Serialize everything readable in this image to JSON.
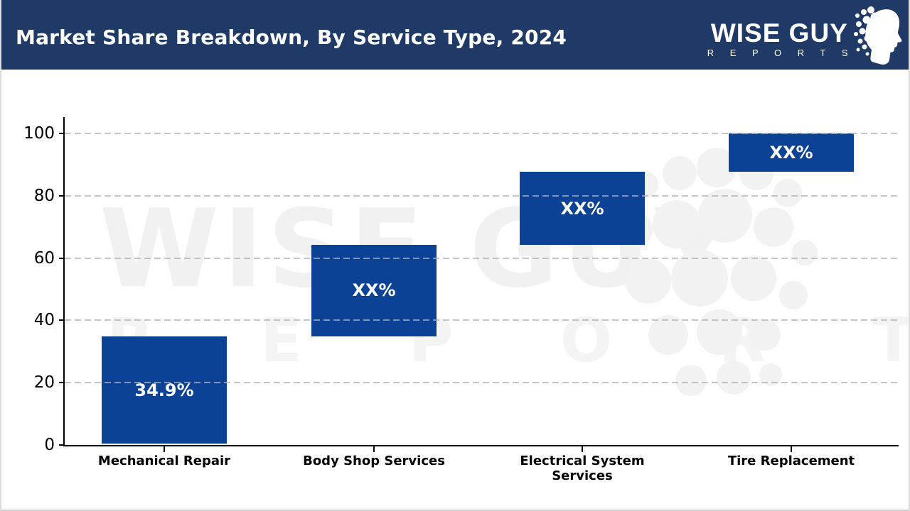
{
  "header": {
    "title": "Market Share Breakdown, By Service Type, 2024",
    "bg_color": "#1f3a66",
    "logo": {
      "line1": "WISE GUY",
      "line2": "R E P O R T S",
      "head_icon": "dotted-head-profile-icon"
    }
  },
  "watermark": {
    "line1": "WISE GUY",
    "line2": "R E P O R T S",
    "head_icon": "dotted-head-profile-watermark"
  },
  "chart_data": {
    "type": "bar",
    "subtype": "waterfall",
    "title": "Market Share Breakdown, By Service Type, 2024",
    "categories": [
      "Mechanical Repair",
      "Body Shop Services",
      "Electrical System Services",
      "Tire Replacement"
    ],
    "segments": [
      {
        "category": "Mechanical Repair",
        "start": 0,
        "end": 34.9,
        "label": "34.9%"
      },
      {
        "category": "Body Shop Services",
        "start": 34.9,
        "end": 64.3,
        "label": "XX%"
      },
      {
        "category": "Electrical System Services",
        "start": 64.3,
        "end": 87.6,
        "label": "XX%"
      },
      {
        "category": "Tire Replacement",
        "start": 87.6,
        "end": 100,
        "label": "XX%"
      }
    ],
    "y_ticks": [
      0,
      20,
      40,
      60,
      80,
      100
    ],
    "ylim": [
      0,
      100
    ],
    "xlabel": "",
    "ylabel": "",
    "grid": "horizontal-dashed",
    "legend": "none",
    "bar_color": "#0b4296",
    "bar_label_color": "#ffffff",
    "axis_color": "#000000",
    "gridline_color": "#c9c9c9"
  }
}
